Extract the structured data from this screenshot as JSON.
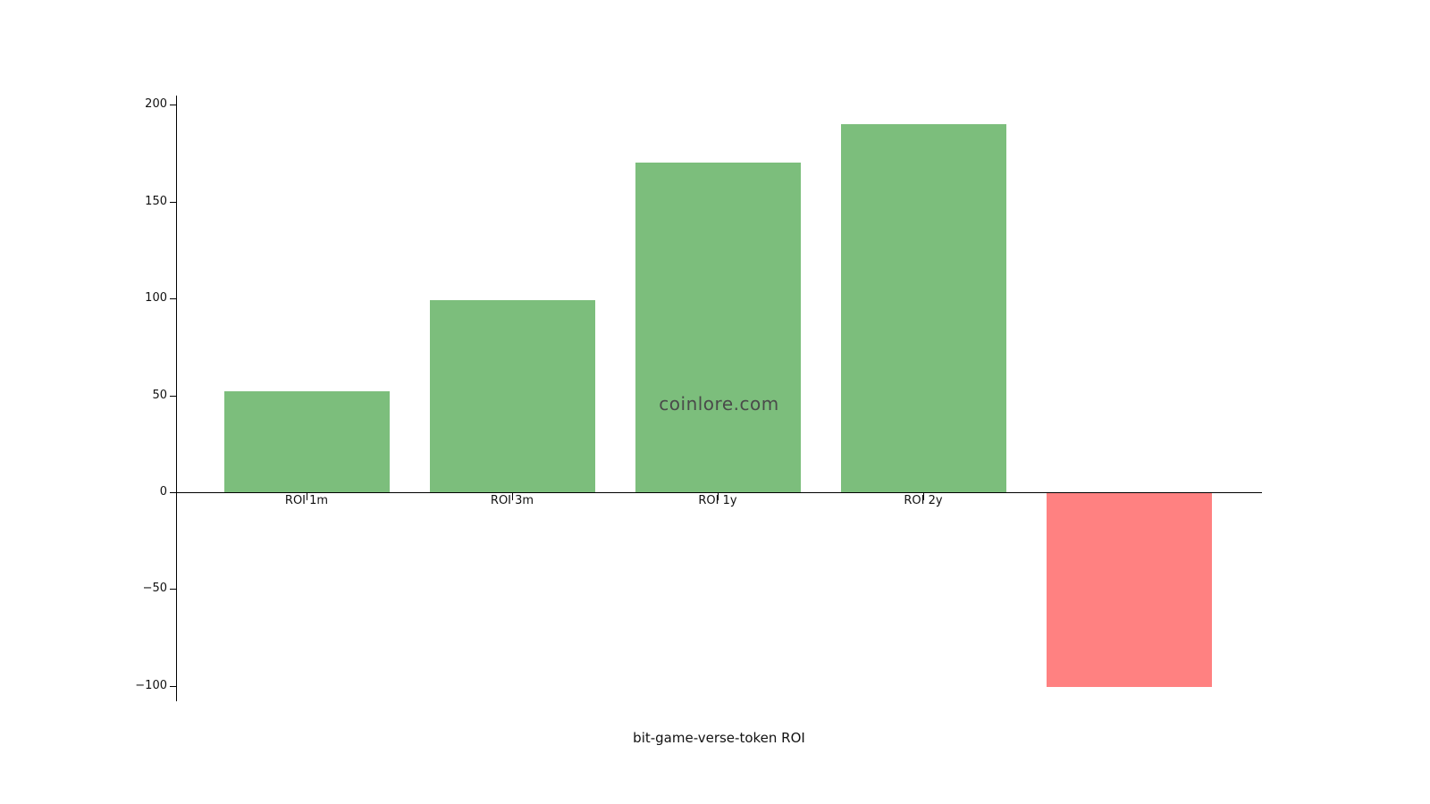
{
  "figure": {
    "background": "#ffffff",
    "watermark": "coinlore.com",
    "watermark_color": "#4a4a4a"
  },
  "chart_data": {
    "type": "bar",
    "title": "bit-game-verse-token ROI",
    "xlabel": "",
    "ylabel": "",
    "categories": [
      "ROI 1m",
      "ROI 3m",
      "ROI 1y",
      "ROI 2y",
      ""
    ],
    "values": [
      52,
      99,
      170,
      190,
      -100
    ],
    "bar_colors": [
      "#7cbe7c",
      "#7cbe7c",
      "#7cbe7c",
      "#7cbe7c",
      "#ff8181"
    ],
    "positive_color": "#7cbe7c",
    "negative_color": "#ff8181",
    "axis_color": "#000000",
    "yticks": [
      200,
      150,
      100,
      50,
      0,
      -50,
      -100
    ],
    "ylim": [
      -108,
      205
    ],
    "grid": false,
    "legend": null
  }
}
